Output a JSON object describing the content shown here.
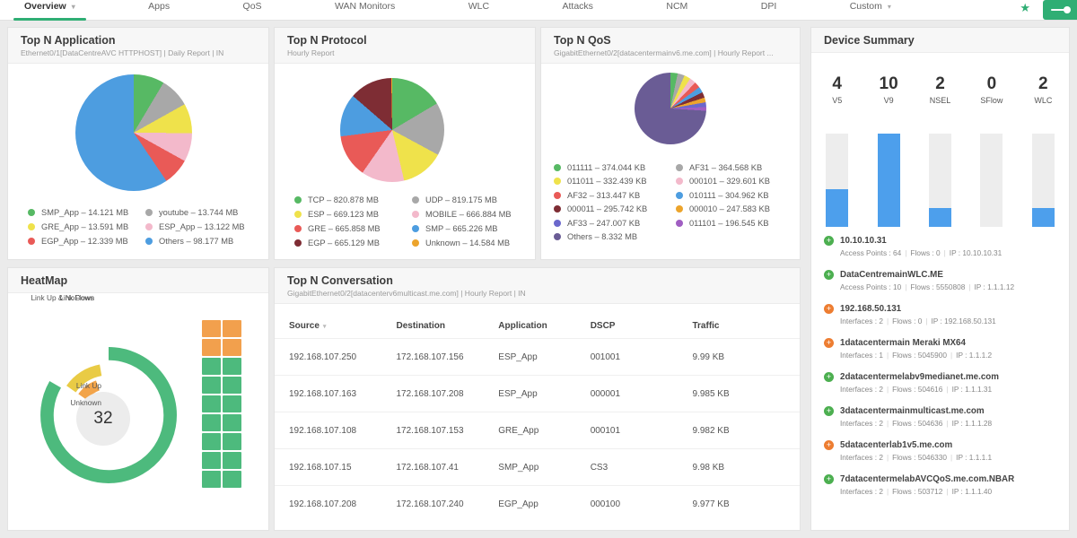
{
  "nav": {
    "tabs": [
      {
        "label": "Overview",
        "active": true,
        "chevron": true
      },
      {
        "label": "Apps"
      },
      {
        "label": "QoS"
      },
      {
        "label": "WAN Monitors"
      },
      {
        "label": "WLC"
      },
      {
        "label": "Attacks"
      },
      {
        "label": "NCM"
      },
      {
        "label": "DPI"
      },
      {
        "label": "Custom",
        "chevron": true
      }
    ],
    "star_icon": "★",
    "accent_color": "#2fae74"
  },
  "top_n_application": {
    "title": "Top N Application",
    "subtitle": "Ethernet0/1[DataCentreAVC HTTPHOST] | Daily Report | IN",
    "unit": "MB",
    "legend": [
      {
        "text": "SMP_App – 14.121 MB",
        "color": "#57b964",
        "value": 14.121
      },
      {
        "text": "youtube – 13.744 MB",
        "color": "#a8a8a8",
        "value": 13.744
      },
      {
        "text": "GRE_App – 13.591 MB",
        "color": "#efe24b",
        "value": 13.591
      },
      {
        "text": "ESP_App – 13.122 MB",
        "color": "#f3b9cb",
        "value": 13.122
      },
      {
        "text": "EGP_App – 12.339 MB",
        "color": "#e95a57",
        "value": 12.339
      },
      {
        "text": "Others – 98.177 MB",
        "color": "#4d9de0",
        "value": 98.177
      }
    ]
  },
  "top_n_protocol": {
    "title": "Top N Protocol",
    "subtitle": "Hourly Report",
    "unit": "MB",
    "legend": [
      {
        "text": "TCP – 820.878 MB",
        "color": "#57b964",
        "value": 820.878
      },
      {
        "text": "UDP – 819.175 MB",
        "color": "#a8a8a8",
        "value": 819.175
      },
      {
        "text": "ESP – 669.123 MB",
        "color": "#efe24b",
        "value": 669.123
      },
      {
        "text": "MOBILE – 666.884 MB",
        "color": "#f3b9cb",
        "value": 666.884
      },
      {
        "text": "GRE – 665.858 MB",
        "color": "#e95a57",
        "value": 665.858
      },
      {
        "text": "SMP – 665.226 MB",
        "color": "#4d9de0",
        "value": 665.226
      },
      {
        "text": "EGP – 665.129 MB",
        "color": "#7e2d34",
        "value": 665.129
      },
      {
        "text": "Unknown – 14.584 MB",
        "color": "#eca42c",
        "value": 14.584
      }
    ]
  },
  "top_n_qos": {
    "title": "Top N QoS",
    "subtitle": "GigabitEthernet0/2[datacentermainv6.me.com] | Hourly Report ...",
    "unit": "KB",
    "legend": [
      {
        "text": "011111 – 374.044 KB",
        "color": "#57b964",
        "value": 374.044
      },
      {
        "text": "AF31 – 364.568 KB",
        "color": "#a8a8a8",
        "value": 364.568
      },
      {
        "text": "011011 – 332.439 KB",
        "color": "#efe24b",
        "value": 332.439
      },
      {
        "text": "000101 – 329.601 KB",
        "color": "#f3b9cb",
        "value": 329.601
      },
      {
        "text": "AF32 – 313.447 KB",
        "color": "#e95a57",
        "value": 313.447
      },
      {
        "text": "010111 – 304.962 KB",
        "color": "#4d9de0",
        "value": 304.962
      },
      {
        "text": "000011 – 295.742 KB",
        "color": "#7e2d34",
        "value": 295.742
      },
      {
        "text": "000010 – 247.583 KB",
        "color": "#eca42c",
        "value": 247.583
      },
      {
        "text": "AF33 – 247.007 KB",
        "color": "#6b68cc",
        "value": 247.007
      },
      {
        "text": "011101 – 196.545 KB",
        "color": "#a05ec2",
        "value": 196.545
      },
      {
        "text": "Others – 8.332 MB",
        "color": "#6a5c95",
        "value": 8532
      }
    ]
  },
  "device_summary": {
    "title": "Device Summary",
    "bar_color": "#4d9fec",
    "bar_max": 10,
    "stats": [
      {
        "value": "4",
        "label": "V5",
        "bar": 4
      },
      {
        "value": "10",
        "label": "V9",
        "bar": 10
      },
      {
        "value": "2",
        "label": "NSEL",
        "bar": 2
      },
      {
        "value": "0",
        "label": "SFlow",
        "bar": 0
      },
      {
        "value": "2",
        "label": "WLC",
        "bar": 2
      }
    ],
    "status_colors": {
      "green": "#4caf50",
      "orange": "#ed7d31"
    },
    "devices": [
      {
        "name": "10.10.10.31",
        "status": "green",
        "meta": [
          "Access Points : 64",
          "Flows : 0",
          "IP : 10.10.10.31"
        ]
      },
      {
        "name": "DataCentremainWLC.ME",
        "status": "green",
        "meta": [
          "Access Points : 10",
          "Flows : 5550808",
          "IP : 1.1.1.12"
        ]
      },
      {
        "name": "192.168.50.131",
        "status": "orange",
        "meta": [
          "Interfaces : 2",
          "Flows : 0",
          "IP : 192.168.50.131"
        ]
      },
      {
        "name": "1datacentermain Meraki MX64",
        "status": "orange",
        "meta": [
          "Interfaces : 1",
          "Flows : 5045900",
          "IP : 1.1.1.2"
        ]
      },
      {
        "name": "2datacentermelabv9medianet.me.com",
        "status": "green",
        "meta": [
          "Interfaces : 2",
          "Flows : 504616",
          "IP : 1.1.1.31"
        ]
      },
      {
        "name": "3datacentermainmulticast.me.com",
        "status": "green",
        "meta": [
          "Interfaces : 2",
          "Flows : 504636",
          "IP : 1.1.1.28"
        ]
      },
      {
        "name": "5datacenterlab1v5.me.com",
        "status": "orange",
        "meta": [
          "Interfaces : 2",
          "Flows : 5046330",
          "IP : 1.1.1.1"
        ]
      },
      {
        "name": "7datacentermelabAVCQoS.me.com.NBAR",
        "status": "green",
        "meta": [
          "Interfaces : 2",
          "Flows : 503712",
          "IP : 1.1.1.40"
        ]
      }
    ]
  },
  "heatmap": {
    "title": "HeatMap",
    "labels": [
      "Link Up",
      "Unknown",
      "Link Up & NoFlows",
      "Link Down"
    ],
    "center_value": "32",
    "colors": {
      "link_up": "#4dba7d",
      "unknown": "#e9cb45",
      "link_up_noflows": "#f2a44a"
    },
    "grid": {
      "cols": 2,
      "row_colors": [
        "orange",
        "orange",
        "green",
        "green",
        "green",
        "green",
        "green",
        "green",
        "green"
      ],
      "cell_colors": {
        "orange": "#f2a04d",
        "green": "#4dba7d"
      }
    }
  },
  "top_n_conversation": {
    "title": "Top N Conversation",
    "subtitle": "GigabitEthernet0/2[datacenterv6multicast.me.com] | Hourly Report | IN",
    "columns": [
      "Source",
      "Destination",
      "Application",
      "DSCP",
      "Traffic"
    ],
    "sorted_column": "Source",
    "rows": [
      [
        "192.168.107.250",
        "172.168.107.156",
        "ESP_App",
        "001001",
        "9.99 KB"
      ],
      [
        "192.168.107.163",
        "172.168.107.208",
        "ESP_App",
        "000001",
        "9.985 KB"
      ],
      [
        "192.168.107.108",
        "172.168.107.153",
        "GRE_App",
        "000101",
        "9.982 KB"
      ],
      [
        "192.168.107.15",
        "172.168.107.41",
        "SMP_App",
        "CS3",
        "9.98 KB"
      ],
      [
        "192.168.107.208",
        "172.168.107.240",
        "EGP_App",
        "000100",
        "9.977 KB"
      ]
    ]
  },
  "chart_data": [
    {
      "type": "pie",
      "title": "Top N Application",
      "categories": [
        "SMP_App",
        "youtube",
        "GRE_App",
        "ESP_App",
        "EGP_App",
        "Others"
      ],
      "values": [
        14.121,
        13.744,
        13.591,
        13.122,
        12.339,
        98.177
      ],
      "unit": "MB",
      "legend_position": "bottom"
    },
    {
      "type": "pie",
      "title": "Top N Protocol",
      "categories": [
        "TCP",
        "UDP",
        "ESP",
        "MOBILE",
        "GRE",
        "SMP",
        "EGP",
        "Unknown"
      ],
      "values": [
        820.878,
        819.175,
        669.123,
        666.884,
        665.858,
        665.226,
        665.129,
        14.584
      ],
      "unit": "MB",
      "legend_position": "bottom"
    },
    {
      "type": "pie",
      "title": "Top N QoS",
      "categories": [
        "011111",
        "AF31",
        "011011",
        "000101",
        "AF32",
        "010111",
        "000011",
        "000010",
        "AF33",
        "011101",
        "Others"
      ],
      "values": [
        374.044,
        364.568,
        332.439,
        329.601,
        313.447,
        304.962,
        295.742,
        247.583,
        247.007,
        196.545,
        8532
      ],
      "unit": "KB",
      "legend_position": "bottom"
    },
    {
      "type": "bar",
      "title": "Device Summary",
      "categories": [
        "V5",
        "V9",
        "NSEL",
        "SFlow",
        "WLC"
      ],
      "values": [
        4,
        10,
        2,
        0,
        2
      ],
      "ylim": [
        0,
        10
      ],
      "grid": false
    },
    {
      "type": "pie",
      "title": "HeatMap interface status donut",
      "categories": [
        "Link Up",
        "Unknown",
        "Link Up & NoFlows",
        "Link Down"
      ],
      "values": [
        28,
        2,
        2,
        0
      ],
      "annotations": [
        "32"
      ]
    }
  ]
}
